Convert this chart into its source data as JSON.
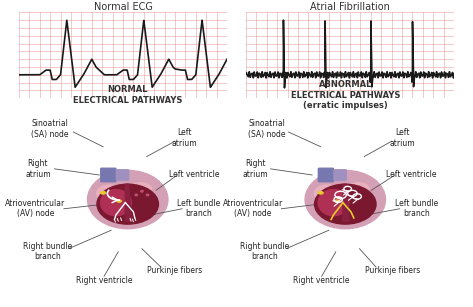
{
  "title_left": "Normal ECG",
  "title_right": "Atrial Fibrillation",
  "label_left": "NORMAL\nELECTRICAL PATHWAYS",
  "label_right": "ABNORMAL\nELECTRICAL PATHWAYS\n(erratic impulses)",
  "bg_color": "#ffffff",
  "ecg_bg": "#f7c8c8",
  "ecg_line_color": "#1a1a1a",
  "grid_color": "#e8a0a0",
  "heart_outer": "#c8a0b0",
  "heart_inner_dark": "#8b2040",
  "heart_inner_mid": "#b04060",
  "heart_atrium": "#d4808a",
  "heart_aorta": "#7070b0",
  "pathway_color": "#ffffff",
  "pathway_abnormal": "#ffffff",
  "node_color": "#e8c840",
  "label_annotations": [
    "Sinoatrial\n(SA) node",
    "Right\natrium",
    "Atrioventricular\n(AV) node",
    "Right bundle\nbranch",
    "Right ventricle",
    "Left\natrium",
    "Left ventricle",
    "Left bundle\nbranch",
    "Purkinje fibers"
  ],
  "font_size_title": 7,
  "font_size_label": 5.5,
  "font_size_heading": 6
}
